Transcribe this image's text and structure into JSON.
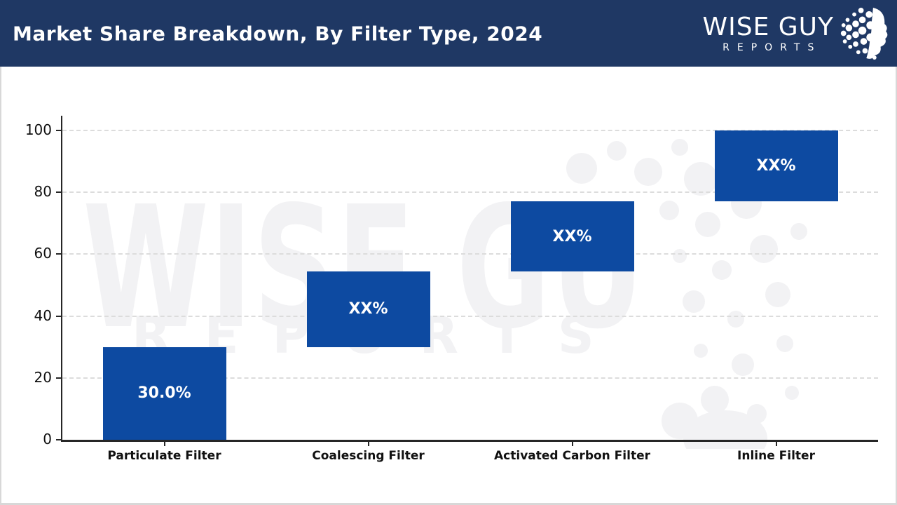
{
  "header": {
    "title": "Market Share Breakdown, By Filter Type, 2024",
    "logo": {
      "line1": "WISE GUY",
      "line2": "REPORTS"
    }
  },
  "watermark": {
    "line1": "WISE GU",
    "line2": "REPORTS"
  },
  "colors": {
    "header_bg": "#1f3864",
    "bar_fill": "#0d4aa1",
    "bar_label": "#ffffff",
    "axis": "#262626",
    "gridline": "#dcdcdc",
    "watermark": "#f2f2f4",
    "title_text": "#ffffff"
  },
  "chart_data": {
    "type": "bar",
    "subtype": "waterfall",
    "title": "Market Share Breakdown, By Filter Type, 2024",
    "xlabel": "",
    "ylabel": "",
    "ylim": [
      0,
      100
    ],
    "yticks": [
      0,
      20,
      40,
      60,
      80,
      100
    ],
    "grid": "horizontal-dashed",
    "legend": "none",
    "categories": [
      "Particulate Filter",
      "Coalescing Filter",
      "Activated Carbon Filter",
      "Inline Filter"
    ],
    "bars": [
      {
        "category": "Particulate Filter",
        "start": 0,
        "end": 30,
        "value": 30,
        "label": "30.0%"
      },
      {
        "category": "Coalescing Filter",
        "start": 30,
        "end": 54.5,
        "value": 24.5,
        "label": "XX%"
      },
      {
        "category": "Activated Carbon Filter",
        "start": 54.5,
        "end": 77,
        "value": 22.5,
        "label": "XX%"
      },
      {
        "category": "Inline Filter",
        "start": 77,
        "end": 100,
        "value": 23,
        "label": "XX%"
      }
    ]
  }
}
